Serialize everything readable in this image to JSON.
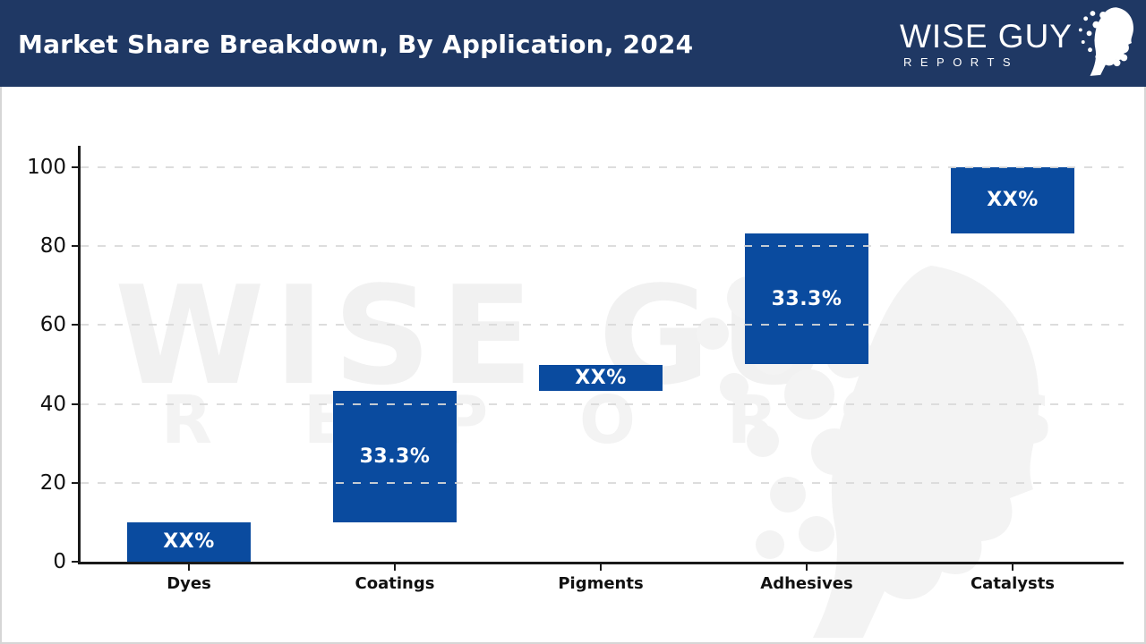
{
  "header": {
    "title": "Market Share Breakdown, By Application, 2024",
    "bg_color": "#1F3864",
    "logo": {
      "line1": "WISE GUY",
      "line2": "REPORTS"
    }
  },
  "watermark": {
    "line1": "WISE GU",
    "line2": "R E P O R T S"
  },
  "chart_data": {
    "type": "bar",
    "variant": "floating-waterfall",
    "title": "Market Share Breakdown, By Application, 2024",
    "categories": [
      "Dyes",
      "Coatings",
      "Pigments",
      "Adhesives",
      "Catalysts"
    ],
    "bars": [
      {
        "category": "Dyes",
        "from": 0,
        "to": 10,
        "label": "XX%"
      },
      {
        "category": "Coatings",
        "from": 10,
        "to": 43.3,
        "label": "33.3%"
      },
      {
        "category": "Pigments",
        "from": 43.3,
        "to": 50,
        "label": "XX%"
      },
      {
        "category": "Adhesives",
        "from": 50,
        "to": 83.3,
        "label": "33.3%"
      },
      {
        "category": "Catalysts",
        "from": 83.3,
        "to": 100,
        "label": "XX%"
      }
    ],
    "ylim": [
      0,
      100
    ],
    "yticks": [
      0,
      20,
      40,
      60,
      80,
      100
    ],
    "grid": "horizontal-dashed",
    "legend": false,
    "bar_color": "#0A4B9F",
    "axis_color": "#1a1a1a",
    "grid_color": "#d9d9d9"
  }
}
